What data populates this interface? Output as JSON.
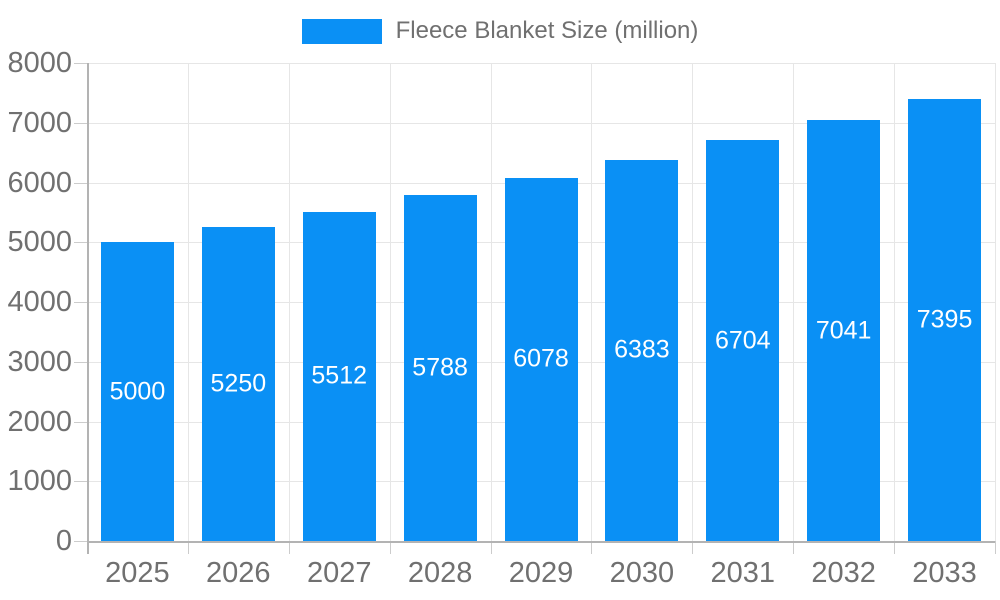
{
  "legend": {
    "label": "Fleece Blanket Size (million)"
  },
  "chart_data": {
    "type": "bar",
    "title": "Fleece Blanket Size (million)",
    "series_name": "Fleece Blanket Size (million)",
    "categories": [
      "2025",
      "2026",
      "2027",
      "2028",
      "2029",
      "2030",
      "2031",
      "2032",
      "2033"
    ],
    "values": [
      5000,
      5250,
      5512,
      5788,
      6078,
      6383,
      6704,
      7041,
      7395
    ],
    "value_labels": [
      "5000",
      "5250",
      "5512",
      "5788",
      "6078",
      "6383",
      "6704",
      "7041",
      "7395"
    ],
    "xlabel": "",
    "ylabel": "",
    "ylim": [
      0,
      8000
    ],
    "yticks": [
      0,
      1000,
      2000,
      3000,
      4000,
      5000,
      6000,
      7000,
      8000
    ],
    "grid": true,
    "legend_position": "top",
    "bar_color": "#0a90f5",
    "value_label_color": "#ffffff",
    "axis_text_color": "#707070",
    "gridline_color": "#e6e6e6",
    "axis_line_color": "#b3b3b3"
  }
}
